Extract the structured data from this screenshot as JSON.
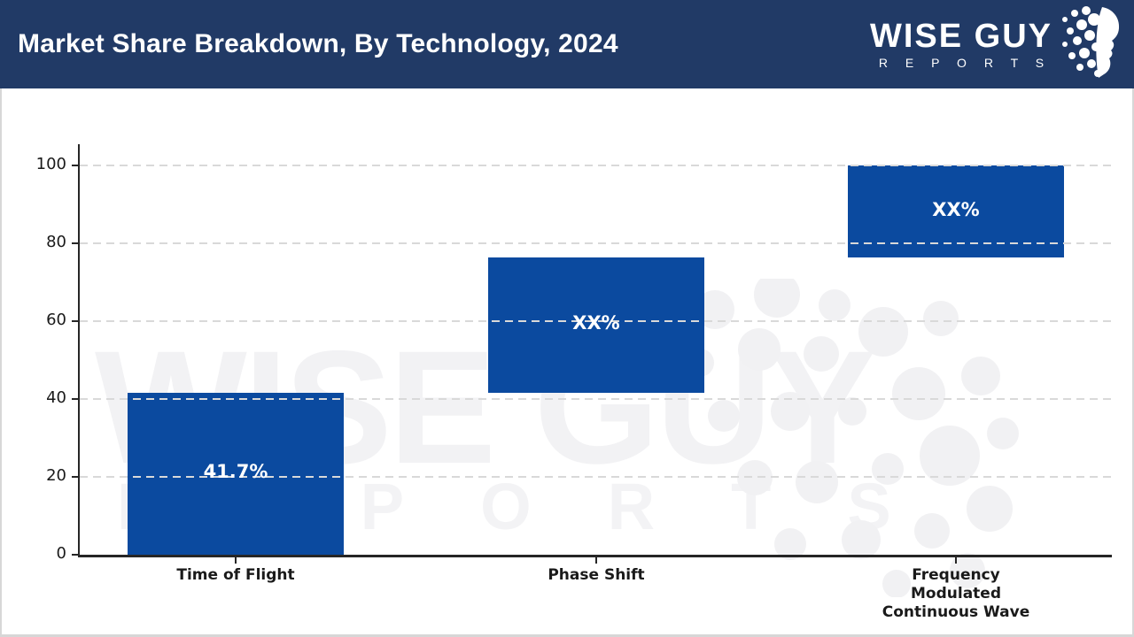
{
  "header": {
    "title": "Market Share Breakdown, By Technology, 2024",
    "logo": {
      "primary": "WISE GUY",
      "secondary": "R E P O R T S"
    }
  },
  "watermark": {
    "primary": "WISE GUY",
    "secondary": "REPORTS"
  },
  "chart_data": {
    "type": "bar",
    "subtype": "floating-waterfall",
    "title": "Market Share Breakdown, By Technology, 2024",
    "categories": [
      "Time of Flight",
      "Phase Shift",
      "Frequency\nModulated\nContinuous Wave"
    ],
    "segments": [
      {
        "category": "Time of Flight",
        "start": 0,
        "end": 41.7,
        "label": "41.7%"
      },
      {
        "category": "Phase Shift",
        "start": 41.7,
        "end": 76.3,
        "label": "XX%"
      },
      {
        "category": "Frequency Modulated Continuous Wave",
        "start": 76.3,
        "end": 100,
        "label": "XX%"
      }
    ],
    "xlabel": "",
    "ylabel": "",
    "ylim": [
      0,
      100
    ],
    "yticks": [
      0,
      20,
      40,
      60,
      80,
      100
    ],
    "grid": {
      "horizontal": true,
      "style": "dashed",
      "drawn_over_bars": true
    },
    "legend": "none",
    "colors": {
      "bar": "#0B4A9F",
      "bar_label": "#FFFFFF",
      "header_bg": "#213A66",
      "axis": "#262626",
      "gridline": "#D9D9D9",
      "watermark": "#F2F2F4"
    }
  }
}
